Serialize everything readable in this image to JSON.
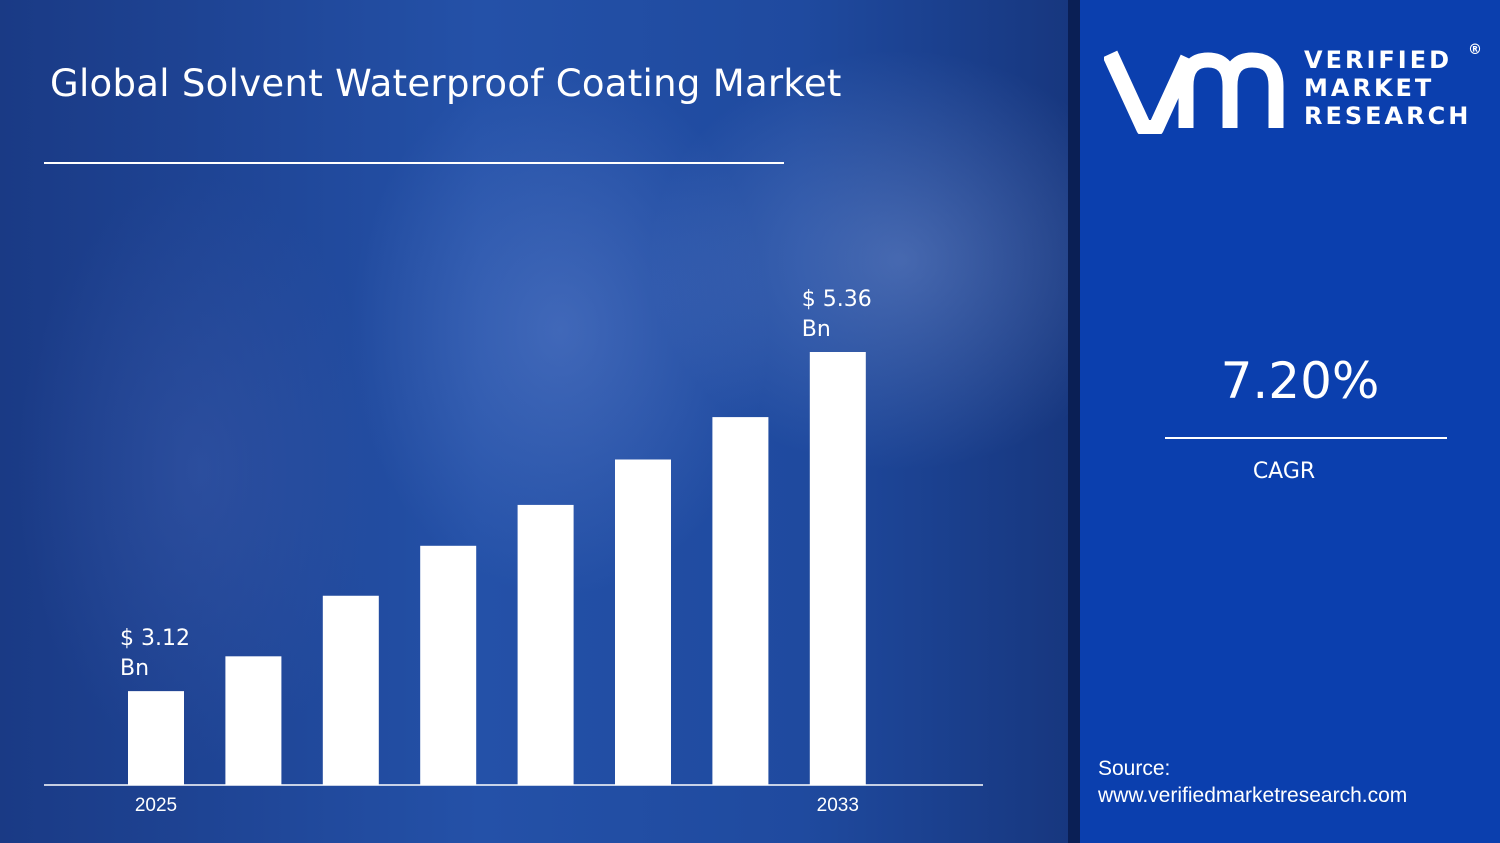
{
  "chart_data": {
    "type": "bar",
    "title": "Global Solvent Waterproof Coating Market",
    "categories": [
      "2025",
      "",
      "",
      "",
      "",
      "",
      "",
      "2033"
    ],
    "values": [
      3.12,
      3.35,
      3.75,
      4.08,
      4.35,
      4.65,
      4.93,
      5.36
    ],
    "value_labels": [
      {
        "index": 0,
        "line1": "$ 3.12",
        "line2": "Bn"
      },
      {
        "index": 7,
        "line1": "$ 5.36",
        "line2": "Bn"
      }
    ],
    "ylim": [
      2.5,
      5.36
    ],
    "grid": false,
    "bar_color": "#ffffff"
  },
  "brand": {
    "line1": "VERIFIED",
    "line2": "MARKET",
    "line3": "RESEARCH",
    "registered": "®"
  },
  "cagr": {
    "value": "7.20%",
    "label": "CAGR"
  },
  "source": {
    "label": "Source:",
    "url": "www.verifiedmarketresearch.com"
  }
}
